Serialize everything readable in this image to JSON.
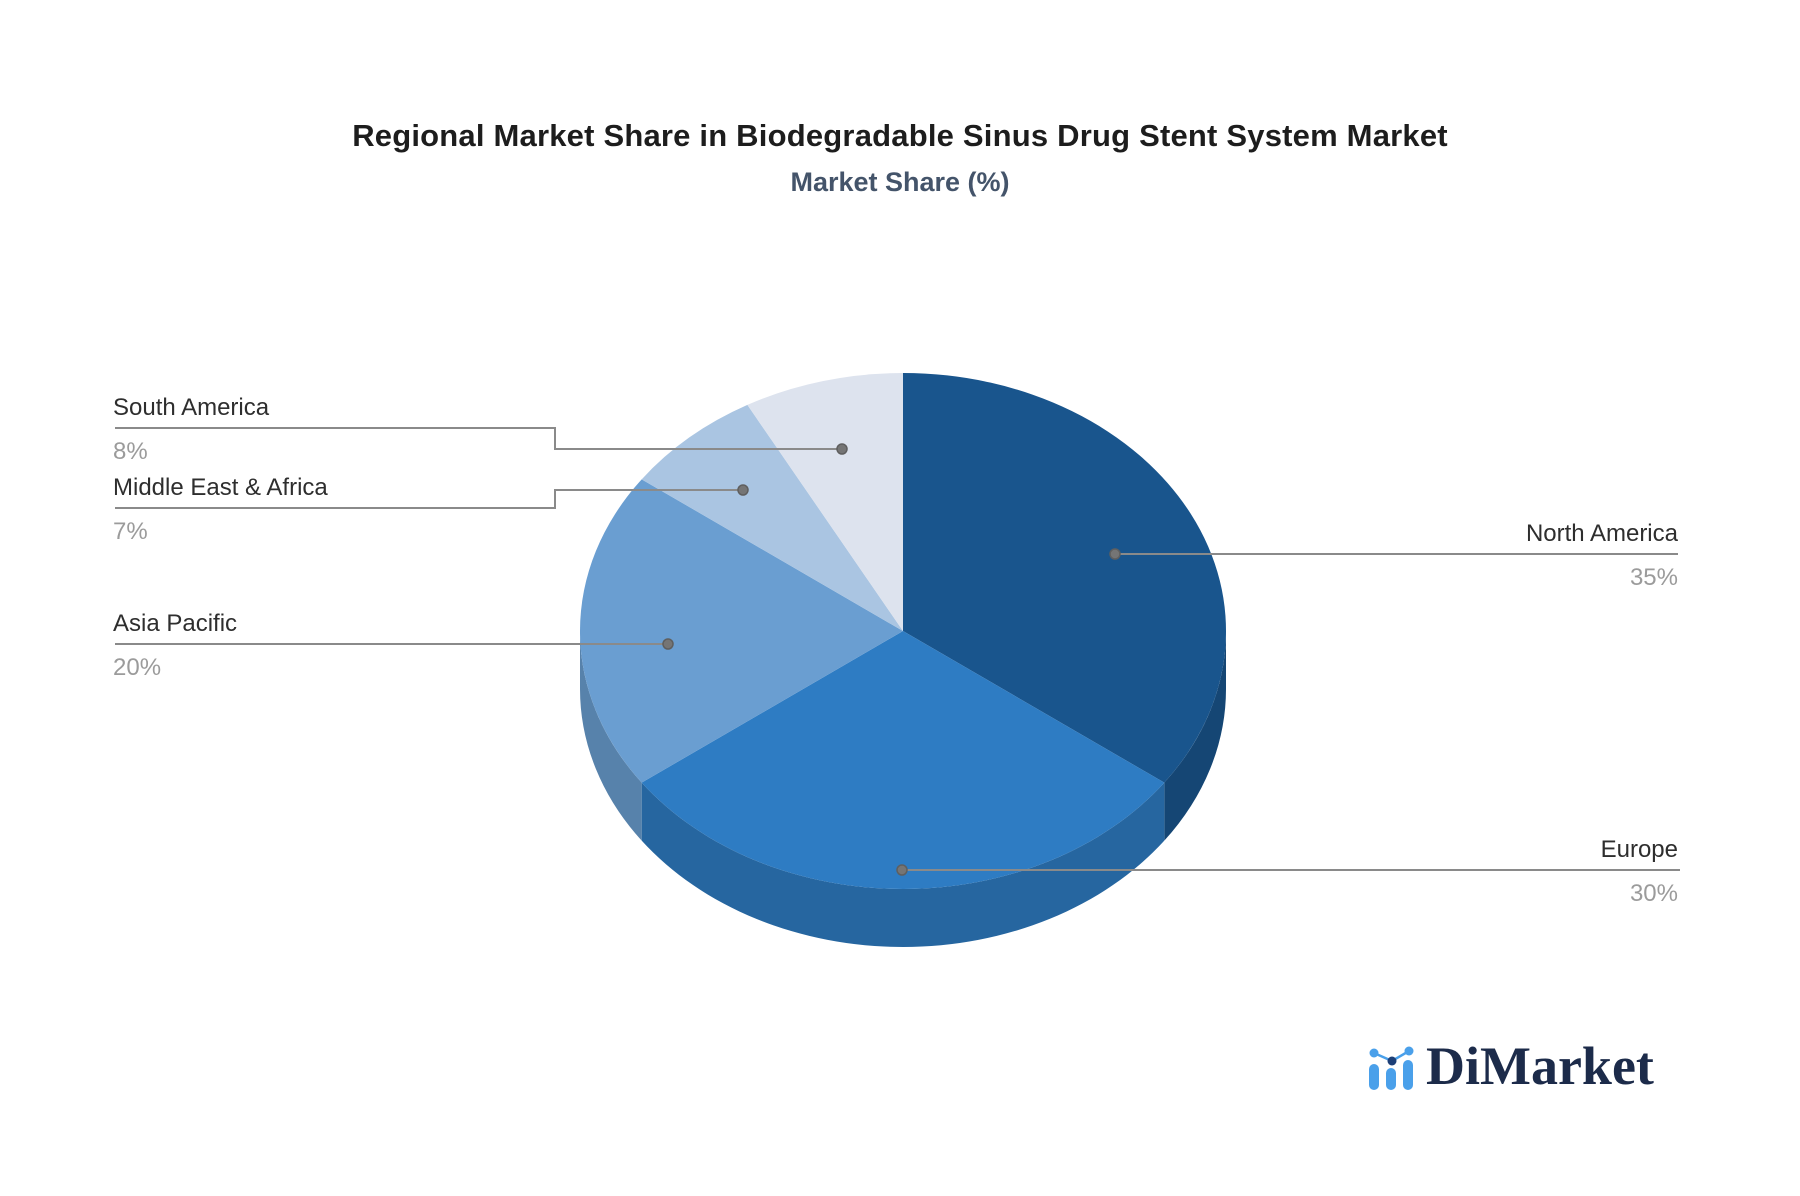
{
  "title": "Regional Market Share in Biodegradable Sinus Drug Stent System Market",
  "subtitle": "Market Share (%)",
  "chart_data": {
    "type": "pie",
    "style": "3d",
    "title": "Regional Market Share in Biodegradable Sinus Drug Stent System Market",
    "subtitle": "Market Share (%)",
    "unit": "%",
    "direction": "clockwise",
    "start_angle_deg": 0,
    "legend": "none",
    "categories": [
      "North America",
      "Europe",
      "Asia Pacific",
      "Middle East & Africa",
      "South America"
    ],
    "values": [
      35,
      30,
      20,
      7,
      8
    ],
    "colors": [
      "#19558D",
      "#2E7CC3",
      "#6A9ED1",
      "#AAC5E2",
      "#DDE3EE"
    ],
    "leader_line_color": "#8A8A8A",
    "callouts": [
      {
        "label": "North America",
        "value_label": "35%"
      },
      {
        "label": "Europe",
        "value_label": "30%"
      },
      {
        "label": "Asia Pacific",
        "value_label": "20%"
      },
      {
        "label": "Middle East & Africa",
        "value_label": "7%"
      },
      {
        "label": "South America",
        "value_label": "8%"
      }
    ]
  },
  "logo": {
    "text": "DiMarket",
    "icon": "bar-line-chart-icon"
  }
}
